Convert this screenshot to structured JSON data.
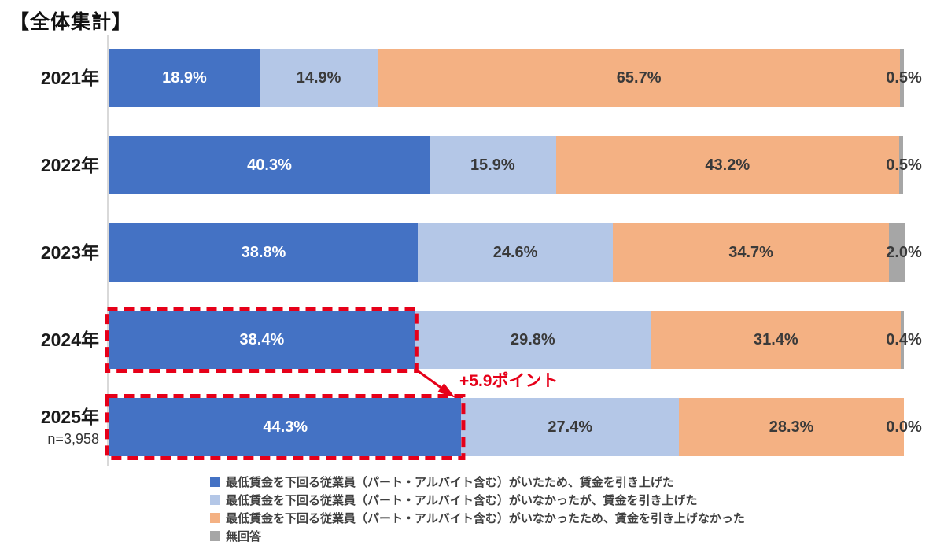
{
  "title": "【全体集計】",
  "colors": {
    "series": [
      "#4472c4",
      "#b4c7e7",
      "#f4b183",
      "#a6a6a6"
    ],
    "label_on_dark": "#ffffff",
    "label_on_light": "#3a3a3a",
    "highlight_red": "#e60019",
    "axis_line": "#d9d9d9"
  },
  "chart_data": {
    "type": "bar",
    "orientation": "horizontal-stacked",
    "title": "【全体集計】",
    "xlim": [
      0,
      100
    ],
    "unit": "%",
    "categories": [
      "2021年",
      "2022年",
      "2023年",
      "2024年",
      "2025年"
    ],
    "sample_note": "n=3,958",
    "sample_note_row": 4,
    "series": [
      {
        "name": "最低賃金を下回る従業員（パート・アルバイト含む）がいたため、賃金を引き上げた",
        "values": [
          18.9,
          40.3,
          38.8,
          38.4,
          44.3
        ]
      },
      {
        "name": "最低賃金を下回る従業員（パート・アルバイト含む）がいなかったが、賃金を引き上げた",
        "values": [
          14.9,
          15.9,
          24.6,
          29.8,
          27.4
        ]
      },
      {
        "name": "最低賃金を下回る従業員（パート・アルバイト含む）がいなかったため、賃金を引き上げなかった",
        "values": [
          65.7,
          43.2,
          34.7,
          31.4,
          28.3
        ]
      },
      {
        "name": "無回答",
        "values": [
          0.5,
          0.5,
          2.0,
          0.4,
          0.0
        ]
      }
    ],
    "value_labels": [
      [
        "18.9%",
        "14.9%",
        "65.7%",
        "0.5%"
      ],
      [
        "40.3%",
        "15.9%",
        "43.2%",
        "0.5%"
      ],
      [
        "38.8%",
        "24.6%",
        "34.7%",
        "2.0%"
      ],
      [
        "38.4%",
        "29.8%",
        "31.4%",
        "0.4%"
      ],
      [
        "44.3%",
        "27.4%",
        "28.3%",
        "0.0%"
      ]
    ],
    "highlight": {
      "rows": [
        3,
        4
      ],
      "series_index": 0
    },
    "annotation": {
      "text": "+5.9ポイント"
    },
    "legend_position": "bottom",
    "grid": false
  }
}
